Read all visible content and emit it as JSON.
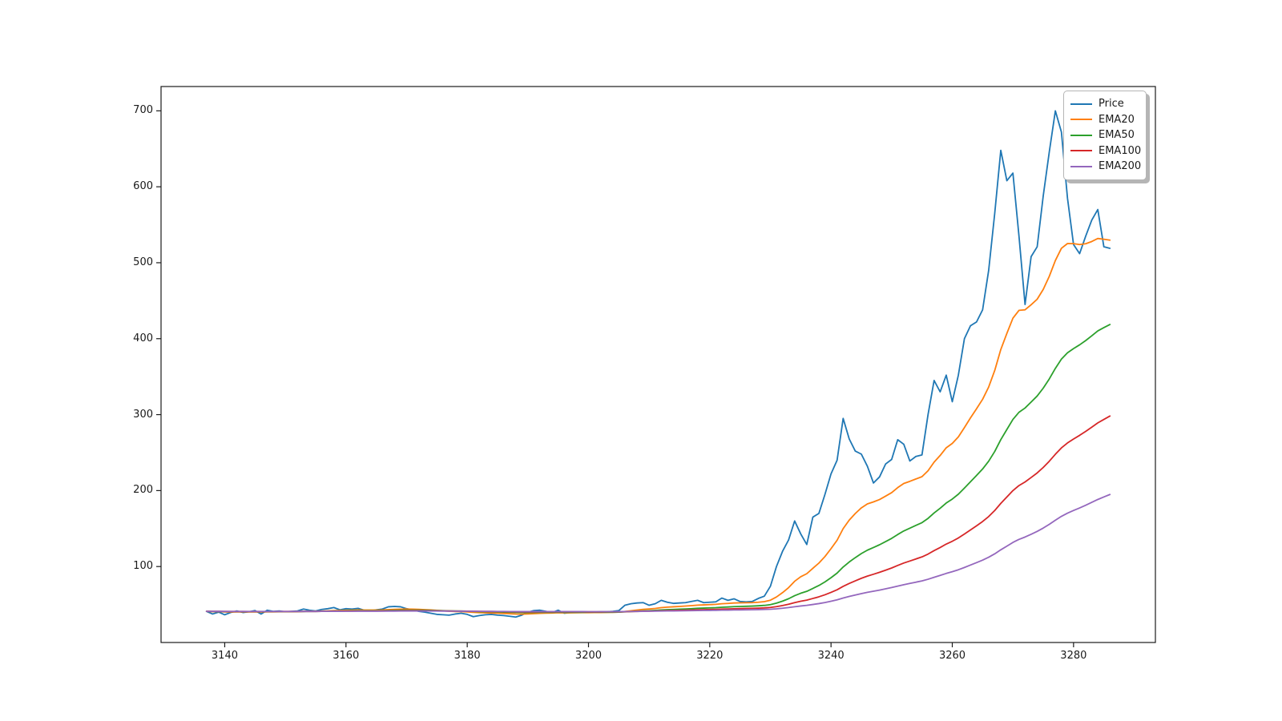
{
  "figure": {
    "background_color": "#ffffff",
    "axes_background_color": "#ffffff",
    "spine_color": "#1a1a1a",
    "tick_label_color": "#1a1a1a"
  },
  "legend": {
    "position": "upper-right",
    "entries": [
      "Price",
      "EMA20",
      "EMA50",
      "EMA100",
      "EMA200"
    ]
  },
  "chart_data": {
    "type": "line",
    "title": "",
    "xlabel": "",
    "ylabel": "",
    "grid": false,
    "legend_position": "upper right",
    "xlim": [
      3129.5,
      3293.5
    ],
    "ylim": [
      0,
      732
    ],
    "x_ticks": [
      3140,
      3160,
      3180,
      3200,
      3220,
      3240,
      3260,
      3280
    ],
    "y_ticks": [
      100,
      200,
      300,
      400,
      500,
      600,
      700
    ],
    "x_start": 3137,
    "x_step": 1,
    "n_points": 150,
    "series": [
      {
        "name": "Price",
        "color": "#1f77b4",
        "kind": "raw",
        "values": [
          41,
          37.5,
          40,
          36.5,
          39.5,
          41.5,
          39.5,
          40.5,
          42,
          37.5,
          42.5,
          41,
          41.5,
          40.5,
          41,
          41.5,
          44,
          42.5,
          41.5,
          43.5,
          44.5,
          46,
          43,
          44.5,
          44,
          45,
          42.5,
          41.5,
          43,
          44,
          47,
          47.5,
          47,
          44.5,
          43,
          41,
          40,
          38.5,
          37,
          36.5,
          36,
          37.5,
          38.5,
          37,
          34,
          35.5,
          36.5,
          37,
          36,
          35.5,
          34.5,
          33.5,
          36,
          40,
          42,
          42.5,
          41,
          39.5,
          42.5,
          38.5,
          39.5,
          40,
          40,
          40,
          40,
          40.5,
          40.5,
          41,
          42,
          49,
          51,
          52,
          52.5,
          49,
          51,
          55.5,
          53,
          51.5,
          52,
          52.5,
          54,
          55.5,
          52.5,
          53,
          53.5,
          58.5,
          55.5,
          57.5,
          54,
          53.5,
          54,
          58,
          61,
          74,
          100,
          120,
          135,
          160,
          143,
          129,
          165,
          170,
          195,
          222,
          240,
          295,
          268,
          252,
          248,
          232,
          210,
          218,
          235,
          241,
          267,
          261,
          239,
          245,
          247,
          300,
          345,
          330,
          352,
          317,
          352,
          400,
          417,
          422,
          438,
          490,
          565,
          648,
          608,
          618,
          535,
          445,
          508,
          521,
          588,
          646,
          700,
          672,
          585,
          524,
          512,
          535,
          556,
          570,
          521,
          519
        ]
      },
      {
        "name": "EMA20",
        "color": "#ff7f0e",
        "kind": "ema",
        "period": 20,
        "source": "Price",
        "observed_points": [
          [
            3137,
            41
          ],
          [
            3200,
            40
          ],
          [
            3230,
            55
          ],
          [
            3240,
            111
          ],
          [
            3245,
            162
          ],
          [
            3250,
            192
          ],
          [
            3256,
            226
          ],
          [
            3260,
            266
          ],
          [
            3265,
            315
          ],
          [
            3270,
            420
          ],
          [
            3274,
            454
          ],
          [
            3278,
            504
          ],
          [
            3281,
            551
          ],
          [
            3283,
            551
          ],
          [
            3286,
            548
          ]
        ]
      },
      {
        "name": "EMA50",
        "color": "#2ca02c",
        "kind": "ema",
        "period": 50,
        "source": "Price",
        "observed_points": [
          [
            3137,
            41
          ],
          [
            3200,
            40
          ],
          [
            3230,
            49
          ],
          [
            3240,
            88
          ],
          [
            3245,
            111
          ],
          [
            3250,
            132
          ],
          [
            3256,
            164
          ],
          [
            3260,
            200
          ],
          [
            3265,
            253
          ],
          [
            3269,
            300
          ],
          [
            3273,
            330
          ],
          [
            3278,
            375
          ],
          [
            3282,
            406
          ],
          [
            3286,
            425
          ]
        ]
      },
      {
        "name": "EMA100",
        "color": "#d62728",
        "kind": "ema",
        "period": 100,
        "source": "Price",
        "observed_points": [
          [
            3137,
            41
          ],
          [
            3200,
            40
          ],
          [
            3230,
            45
          ],
          [
            3240,
            70
          ],
          [
            3245,
            85
          ],
          [
            3250,
            100
          ],
          [
            3256,
            118
          ],
          [
            3260,
            139
          ],
          [
            3265,
            168
          ],
          [
            3269,
            205
          ],
          [
            3273,
            232
          ],
          [
            3278,
            264
          ],
          [
            3282,
            290
          ],
          [
            3286,
            300
          ]
        ]
      },
      {
        "name": "EMA200",
        "color": "#9467bd",
        "kind": "ema",
        "period": 200,
        "source": "Price",
        "observed_points": [
          [
            3137,
            41
          ],
          [
            3200,
            40
          ],
          [
            3230,
            41
          ],
          [
            3240,
            53
          ],
          [
            3245,
            66
          ],
          [
            3250,
            76
          ],
          [
            3256,
            88
          ],
          [
            3260,
            97
          ],
          [
            3265,
            120
          ],
          [
            3269,
            141
          ],
          [
            3273,
            162
          ],
          [
            3278,
            178
          ],
          [
            3282,
            190
          ],
          [
            3286,
            195
          ]
        ]
      }
    ]
  }
}
